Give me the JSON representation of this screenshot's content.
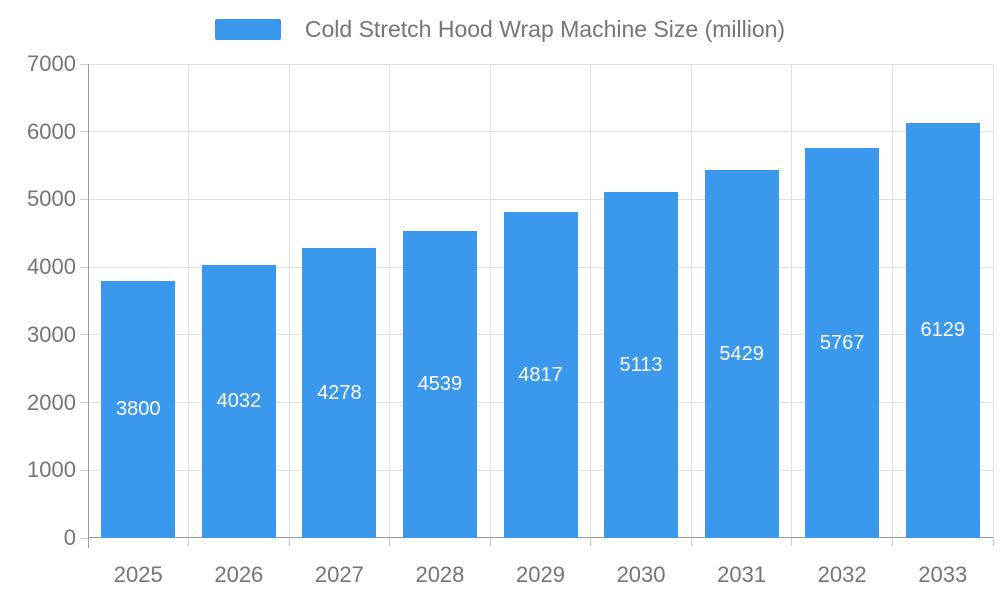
{
  "legend": {
    "label": "Cold Stretch Hood Wrap Machine Size (million)"
  },
  "chart_data": {
    "type": "bar",
    "title": "Cold Stretch Hood Wrap Machine Size (million)",
    "categories": [
      "2025",
      "2026",
      "2027",
      "2028",
      "2029",
      "2030",
      "2031",
      "2032",
      "2033"
    ],
    "values": [
      3800,
      4032,
      4278,
      4539,
      4817,
      5113,
      5429,
      5767,
      6129
    ],
    "xlabel": "",
    "ylabel": "",
    "ylim": [
      0,
      7000
    ],
    "ytick_interval": 1000,
    "ytick_labels": [
      "0",
      "1000",
      "2000",
      "3000",
      "4000",
      "5000",
      "6000",
      "7000"
    ],
    "grid": true,
    "legend_position": "top",
    "value_label_position": "inside-middle",
    "colors": {
      "bar": "#3A99EC",
      "value_label": "#ffffff",
      "legend_text": "#757575",
      "axis_text": "#757575",
      "axis_line": "#999999",
      "grid_line": "#E0E0E0",
      "tick_line": "#CCCCCC",
      "background": "#ffffff"
    }
  }
}
